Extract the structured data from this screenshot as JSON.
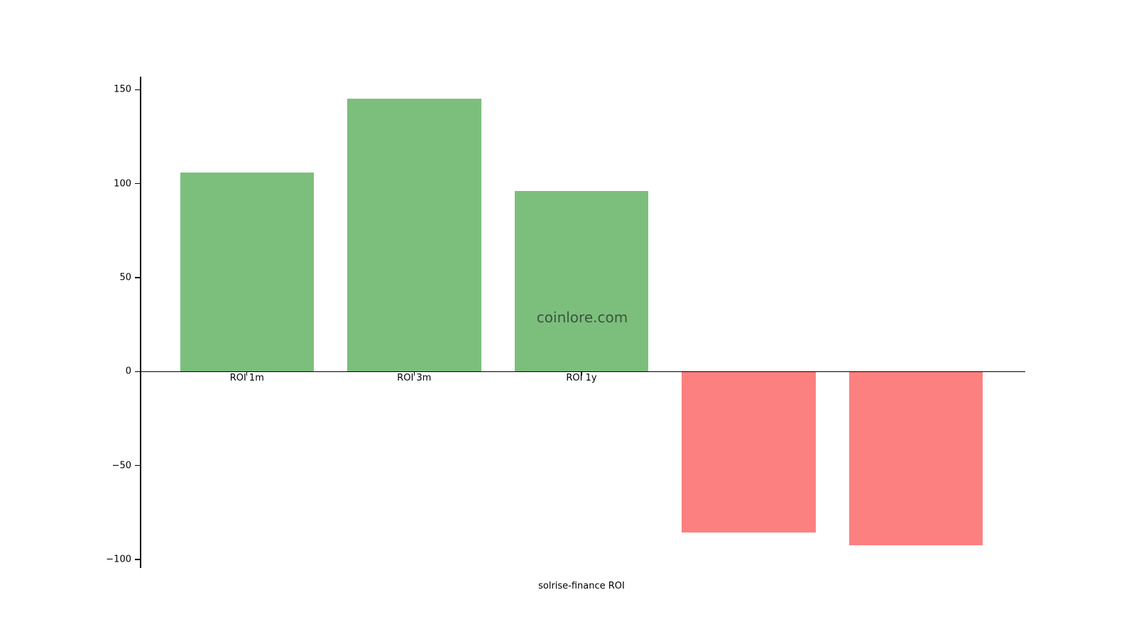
{
  "chart_data": {
    "type": "bar",
    "title": "",
    "xlabel": "solrise-finance ROI",
    "ylabel": "",
    "watermark": "coinlore.com",
    "categories": [
      "ROI 1m",
      "ROI 3m",
      "ROI 1y",
      "",
      ""
    ],
    "values": [
      106.0,
      145.1,
      96.0,
      -85.7,
      -92.3
    ],
    "bar_colors": [
      "#7cbf7c",
      "#7cbf7c",
      "#7cbf7c",
      "#fc8080",
      "#fc8080"
    ],
    "positive_color": "#7cbf7c",
    "negative_color": "#fc8080",
    "yticks": [
      -100,
      -50,
      0,
      50,
      100,
      150
    ],
    "ytick_labels": [
      "−100",
      "−50",
      "0",
      "50",
      "100",
      "150"
    ],
    "ylim": [
      -104.6,
      156.9
    ],
    "xlim": [
      -0.64,
      4.64
    ],
    "bar_width": 0.8,
    "grid": false,
    "legend": null,
    "note_hidden_labels": ""
  }
}
